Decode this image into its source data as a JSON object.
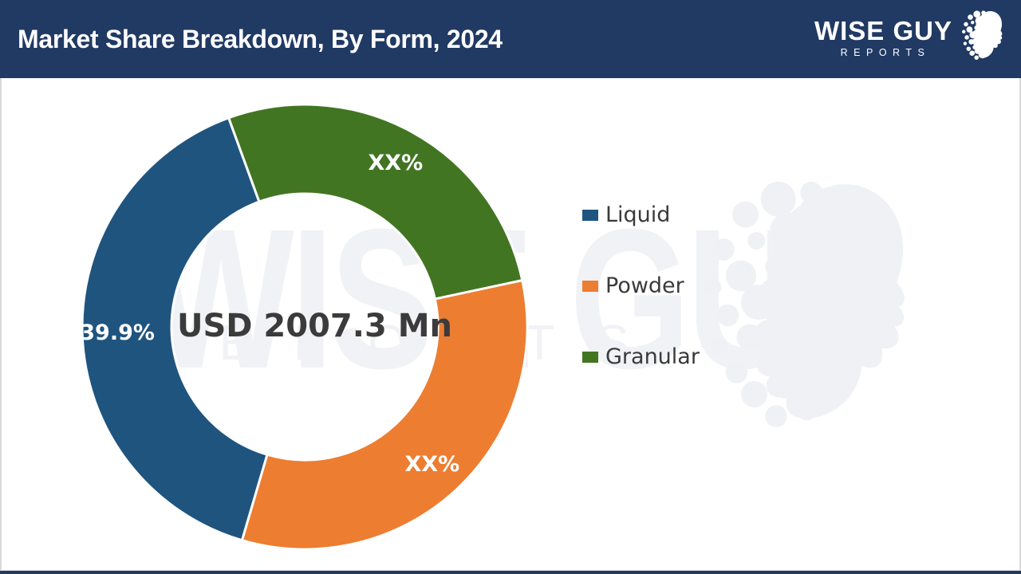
{
  "header": {
    "title": "Market Share Breakdown, By Form, 2024",
    "logo": {
      "line1": "WISE GUY",
      "line2": "REPORTS",
      "face_icon": "dotted-face-profile-icon"
    }
  },
  "watermark": {
    "line1": "WISE GUY",
    "line2": "REPORTS",
    "face_icon": "dotted-face-profile-watermark",
    "color": "#F1F2F5"
  },
  "chart_data": {
    "type": "pie",
    "subtype": "donut",
    "title": "Market Share Breakdown, By Form, 2024",
    "center_label": "USD 2007.3 Mn",
    "start_angle_deg": -20,
    "clockwise_order": [
      "Granular",
      "Powder",
      "Liquid"
    ],
    "legend_position": "right",
    "segments": [
      {
        "name": "Liquid",
        "value_pct": 39.9,
        "label": "39.9%",
        "color": "#1F547F"
      },
      {
        "name": "Powder",
        "value_pct": 32.9,
        "label": "XX%",
        "color": "#ED7D31"
      },
      {
        "name": "Granular",
        "value_pct": 27.2,
        "label": "XX%",
        "color": "#427522"
      }
    ]
  },
  "colors": {
    "header_bg": "#213A63",
    "footer_bg": "#213A63",
    "slice_label_text": "#FFFFFF",
    "center_text": "#3B3B3B",
    "legend_text": "#3A3A3A",
    "card_border": "#D9D9D9"
  }
}
